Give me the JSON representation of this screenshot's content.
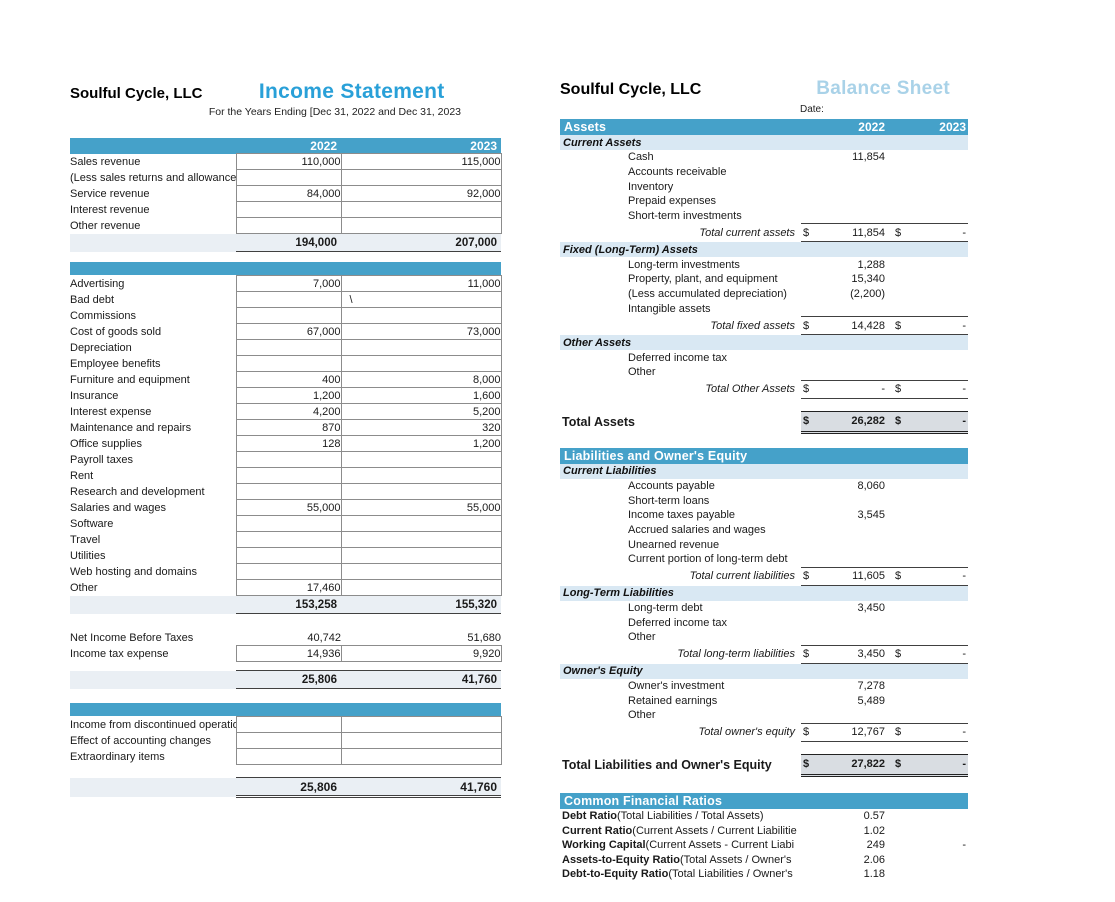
{
  "colors": {
    "accent_bar": "#45A1C9",
    "income_title": "#29A0D8",
    "balance_title": "#A9D2E8",
    "group_row": "#D9E8F3",
    "total_band": "#EAEFF4",
    "grand_box": "#D9DDE2"
  },
  "income_statement": {
    "company": "Soulful Cycle, LLC",
    "title": "Income Statement",
    "subtitle": "For the Years Ending [Dec 31, 2022 and Dec 31, 2023",
    "rows": [
      {
        "kind": "colheader",
        "c2022": "2022",
        "c2023": "2023"
      },
      {
        "kind": "item",
        "label": "Sales revenue",
        "v2022": "110,000",
        "v2023": "115,000"
      },
      {
        "kind": "item",
        "label": "(Less sales returns and allowances)",
        "v2022": "",
        "v2023": ""
      },
      {
        "kind": "item",
        "label": "Service revenue",
        "v2022": "84,000",
        "v2023": "92,000"
      },
      {
        "kind": "item",
        "label": "Interest revenue",
        "v2022": "",
        "v2023": ""
      },
      {
        "kind": "item",
        "label": "Other revenue",
        "v2022": "",
        "v2023": ""
      },
      {
        "kind": "total",
        "v2022": "194,000",
        "v2023": "207,000"
      },
      {
        "kind": "spacer",
        "size": 10
      },
      {
        "kind": "bar"
      },
      {
        "kind": "item",
        "label": "Advertising",
        "v2022": "7,000",
        "v2023": "11,000"
      },
      {
        "kind": "item",
        "label": "Bad debt",
        "v2022": "",
        "v2023": "\\",
        "a2023": "left"
      },
      {
        "kind": "item",
        "label": "Commissions",
        "v2022": "",
        "v2023": ""
      },
      {
        "kind": "item",
        "label": "Cost of goods sold",
        "v2022": "67,000",
        "v2023": "73,000"
      },
      {
        "kind": "item",
        "label": "Depreciation",
        "v2022": "",
        "v2023": ""
      },
      {
        "kind": "item",
        "label": "Employee benefits",
        "v2022": "",
        "v2023": ""
      },
      {
        "kind": "item",
        "label": "Furniture and equipment",
        "v2022": "400",
        "v2023": "8,000"
      },
      {
        "kind": "item",
        "label": "Insurance",
        "v2022": "1,200",
        "v2023": "1,600"
      },
      {
        "kind": "item",
        "label": "Interest expense",
        "v2022": "4,200",
        "v2023": "5,200"
      },
      {
        "kind": "item",
        "label": "Maintenance and repairs",
        "v2022": "870",
        "v2023": "320"
      },
      {
        "kind": "item",
        "label": "Office supplies",
        "v2022": "128",
        "v2023": "1,200"
      },
      {
        "kind": "item",
        "label": "Payroll taxes",
        "v2022": "",
        "v2023": ""
      },
      {
        "kind": "item",
        "label": "Rent",
        "v2022": "",
        "v2023": ""
      },
      {
        "kind": "item",
        "label": "Research and development",
        "v2022": "",
        "v2023": ""
      },
      {
        "kind": "item",
        "label": "Salaries and wages",
        "v2022": "55,000",
        "v2023": "55,000"
      },
      {
        "kind": "item",
        "label": "Software",
        "v2022": "",
        "v2023": ""
      },
      {
        "kind": "item",
        "label": "Travel",
        "v2022": "",
        "v2023": ""
      },
      {
        "kind": "item",
        "label": "Utilities",
        "v2022": "",
        "v2023": ""
      },
      {
        "kind": "item",
        "label": "Web hosting and domains",
        "v2022": "",
        "v2023": ""
      },
      {
        "kind": "item",
        "label": "Other",
        "v2022": "17,460",
        "v2023": ""
      },
      {
        "kind": "total",
        "v2022": "153,258",
        "v2023": "155,320"
      },
      {
        "kind": "spacer",
        "size": 16
      },
      {
        "kind": "item_plain",
        "label": "Net Income Before Taxes",
        "v2022": "40,742",
        "v2023": "51,680"
      },
      {
        "kind": "item",
        "label": "Income tax expense",
        "v2022": "14,936",
        "v2023": "9,920"
      },
      {
        "kind": "spacer",
        "size": 8
      },
      {
        "kind": "total",
        "v2022": "25,806",
        "v2023": "41,760"
      },
      {
        "kind": "spacer",
        "size": 14
      },
      {
        "kind": "bar"
      },
      {
        "kind": "item",
        "label": "Income from discontinued operations",
        "v2022": "",
        "v2023": ""
      },
      {
        "kind": "item",
        "label": "Effect of accounting changes",
        "v2022": "",
        "v2023": ""
      },
      {
        "kind": "item",
        "label": "Extraordinary items",
        "v2022": "",
        "v2023": ""
      },
      {
        "kind": "spacer",
        "size": 12
      },
      {
        "kind": "final",
        "v2022": "25,806",
        "v2023": "41,760"
      }
    ]
  },
  "balance_sheet": {
    "company": "Soulful Cycle, LLC",
    "title": "Balance Sheet",
    "date_label": "Date:",
    "rows": [
      {
        "kind": "bar",
        "label": "Assets",
        "y1": "2022",
        "y2": "2023"
      },
      {
        "kind": "group",
        "label": "Current Assets"
      },
      {
        "kind": "item",
        "label": "Cash",
        "v1": "11,854",
        "v2": ""
      },
      {
        "kind": "item",
        "label": "Accounts receivable",
        "v1": "",
        "v2": ""
      },
      {
        "kind": "item",
        "label": "Inventory",
        "v1": "",
        "v2": ""
      },
      {
        "kind": "item",
        "label": "Prepaid expenses",
        "v1": "",
        "v2": ""
      },
      {
        "kind": "item",
        "label": "Short-term investments",
        "v1": "",
        "v2": ""
      },
      {
        "kind": "total",
        "label": "Total current assets",
        "d1": "$",
        "v1": "11,854",
        "d2": "$",
        "v2": "-"
      },
      {
        "kind": "group",
        "label": "Fixed (Long-Term) Assets"
      },
      {
        "kind": "item",
        "label": "Long-term investments",
        "v1": "1,288",
        "v2": ""
      },
      {
        "kind": "item",
        "label": "Property, plant, and equipment",
        "v1": "15,340",
        "v2": ""
      },
      {
        "kind": "item",
        "label": "(Less accumulated depreciation)",
        "v1": "(2,200)",
        "v2": ""
      },
      {
        "kind": "item",
        "label": "Intangible assets",
        "v1": "",
        "v2": ""
      },
      {
        "kind": "total",
        "label": "Total fixed assets",
        "d1": "$",
        "v1": "14,428",
        "d2": "$",
        "v2": "-"
      },
      {
        "kind": "group",
        "label": "Other Assets"
      },
      {
        "kind": "item",
        "label": "Deferred income tax",
        "v1": "",
        "v2": ""
      },
      {
        "kind": "item",
        "label": "Other",
        "v1": "",
        "v2": ""
      },
      {
        "kind": "total",
        "label": "Total Other Assets",
        "d1": "$",
        "v1": "-",
        "d2": "$",
        "v2": "-"
      },
      {
        "kind": "gap",
        "size": 12
      },
      {
        "kind": "grand",
        "label": "Total Assets",
        "d1": "$",
        "v1": "26,282",
        "d2": "$",
        "v2": "-"
      },
      {
        "kind": "gap",
        "size": 14
      },
      {
        "kind": "bar",
        "label": "Liabilities and Owner's Equity"
      },
      {
        "kind": "group",
        "label": "Current Liabilities"
      },
      {
        "kind": "item",
        "label": "Accounts payable",
        "v1": "8,060",
        "v2": ""
      },
      {
        "kind": "item",
        "label": "Short-term loans",
        "v1": "",
        "v2": ""
      },
      {
        "kind": "item",
        "label": "Income taxes payable",
        "v1": "3,545",
        "v2": ""
      },
      {
        "kind": "item",
        "label": "Accrued salaries and wages",
        "v1": "",
        "v2": ""
      },
      {
        "kind": "item",
        "label": "Unearned revenue",
        "v1": "",
        "v2": ""
      },
      {
        "kind": "item",
        "label": "Current portion of long-term debt",
        "v1": "",
        "v2": ""
      },
      {
        "kind": "total",
        "label": "Total current liabilities",
        "d1": "$",
        "v1": "11,605",
        "d2": "$",
        "v2": "-"
      },
      {
        "kind": "group",
        "label": "Long-Term Liabilities"
      },
      {
        "kind": "item",
        "label": "Long-term debt",
        "v1": "3,450",
        "v2": ""
      },
      {
        "kind": "item",
        "label": "Deferred income tax",
        "v1": "",
        "v2": ""
      },
      {
        "kind": "item",
        "label": "Other",
        "v1": "",
        "v2": ""
      },
      {
        "kind": "total",
        "label": "Total long-term liabilities",
        "d1": "$",
        "v1": "3,450",
        "d2": "$",
        "v2": "-"
      },
      {
        "kind": "group",
        "label": "Owner's Equity"
      },
      {
        "kind": "item",
        "label": "Owner's investment",
        "v1": "7,278",
        "v2": ""
      },
      {
        "kind": "item",
        "label": "Retained earnings",
        "v1": "5,489",
        "v2": ""
      },
      {
        "kind": "item",
        "label": "Other",
        "v1": "",
        "v2": ""
      },
      {
        "kind": "total",
        "label": "Total owner's equity",
        "d1": "$",
        "v1": "12,767",
        "d2": "$",
        "v2": "-"
      },
      {
        "kind": "gap",
        "size": 12
      },
      {
        "kind": "grand",
        "label": "Total Liabilities and Owner's Equity",
        "d1": "$",
        "v1": "27,822",
        "d2": "$",
        "v2": "-"
      },
      {
        "kind": "gap",
        "size": 16
      },
      {
        "kind": "bar",
        "label": "Common Financial Ratios"
      },
      {
        "kind": "ratio",
        "name": "Debt Ratio",
        "formula": " (Total Liabilities / Total Assets)",
        "v1": "0.57",
        "v2": ""
      },
      {
        "kind": "ratio",
        "name": "Current Ratio",
        "formula": " (Current Assets / Current Liabilitie",
        "v1": "1.02",
        "v2": ""
      },
      {
        "kind": "ratio",
        "name": "Working Capital",
        "formula": " (Current Assets - Current Liabi",
        "v1": "249",
        "v2": "-"
      },
      {
        "kind": "ratio",
        "name": "Assets-to-Equity Ratio",
        "formula": " (Total Assets / Owner's",
        "v1": "2.06",
        "v2": ""
      },
      {
        "kind": "ratio",
        "name": "Debt-to-Equity Ratio",
        "formula": " (Total Liabilities / Owner's",
        "v1": "1.18",
        "v2": ""
      }
    ]
  }
}
